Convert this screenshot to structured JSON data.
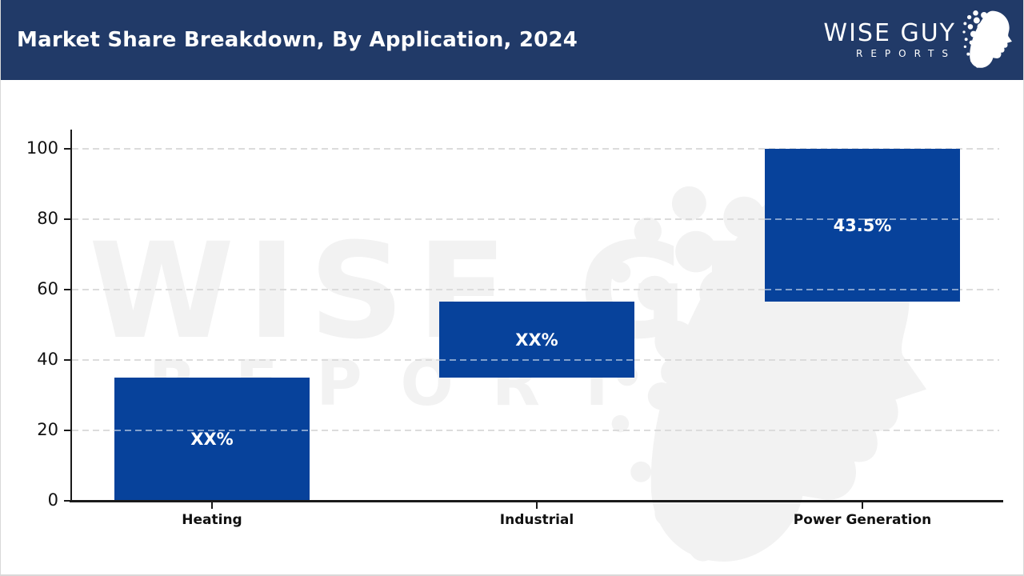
{
  "header": {
    "title": "Market Share Breakdown, By Application, 2024",
    "logo": {
      "line1": "WISE GUY",
      "line2": "REPORTS"
    }
  },
  "watermark": {
    "line1": "WISE GUY",
    "line2": "REPORTS"
  },
  "colors": {
    "header_bg": "#213A68",
    "bar": "#07429B",
    "gridline": "#DCDCDC",
    "axis": "#1A1A1A",
    "bar_label_text": "#FFFFFF",
    "watermark": "#F2F2F2"
  },
  "chart_data": {
    "type": "bar",
    "subtype": "floating-waterfall",
    "title": "Market Share Breakdown, By Application, 2024",
    "categories": [
      "Heating",
      "Industrial",
      "Power Generation"
    ],
    "segments": [
      {
        "category": "Heating",
        "start": 0,
        "end": 35,
        "label": "XX%"
      },
      {
        "category": "Industrial",
        "start": 35,
        "end": 56.5,
        "label": "XX%"
      },
      {
        "category": "Power Generation",
        "start": 56.5,
        "end": 100,
        "label": "43.5%"
      }
    ],
    "yticks": [
      0,
      20,
      40,
      60,
      80,
      100
    ],
    "ylim": [
      0,
      100
    ],
    "xlabel": "",
    "ylabel": "",
    "grid": "horizontal-dashed",
    "legend": "none"
  }
}
